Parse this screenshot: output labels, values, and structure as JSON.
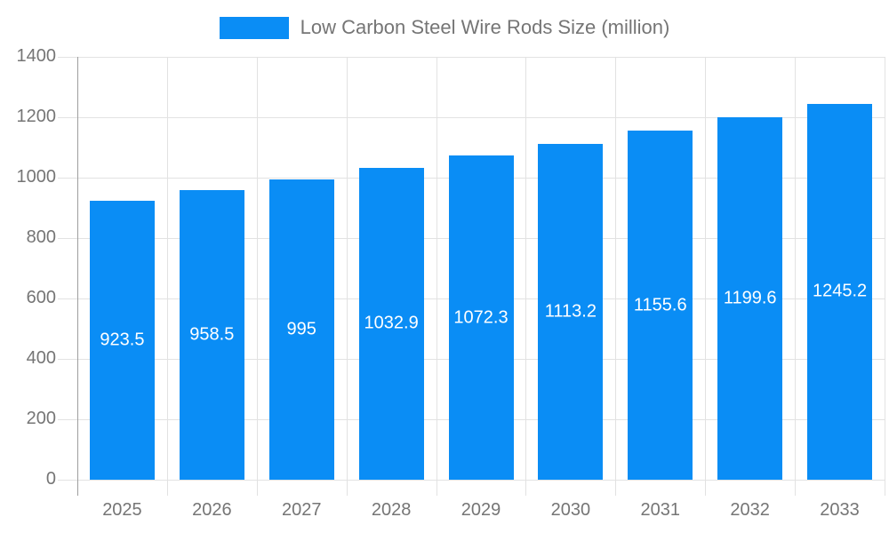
{
  "legend": {
    "label": "Low Carbon Steel Wire Rods Size (million)"
  },
  "colors": {
    "bar": "#0a8df5",
    "tick_text": "#757575",
    "legend_text": "#757575",
    "grid": "#e2e2e2",
    "axis": "#9e9e9e",
    "value_label": "#ffffff",
    "background": "#ffffff"
  },
  "chart_data": {
    "type": "bar",
    "title": "Low Carbon Steel Wire Rods Size (million)",
    "categories": [
      "2025",
      "2026",
      "2027",
      "2028",
      "2029",
      "2030",
      "2031",
      "2032",
      "2033"
    ],
    "values": [
      923.5,
      958.5,
      995,
      1032.9,
      1072.3,
      1113.2,
      1155.6,
      1199.6,
      1245.2
    ],
    "value_labels": [
      "923.5",
      "958.5",
      "995",
      "1032.9",
      "1072.3",
      "1113.2",
      "1155.6",
      "1199.6",
      "1245.2"
    ],
    "xlabel": "",
    "ylabel": "",
    "ylim": [
      0,
      1400
    ],
    "ytick_interval": 200,
    "ytick_labels": [
      "0",
      "200",
      "400",
      "600",
      "800",
      "1000",
      "1200",
      "1400"
    ],
    "grid": true,
    "legend_position": "top",
    "value_label_position": "center"
  }
}
